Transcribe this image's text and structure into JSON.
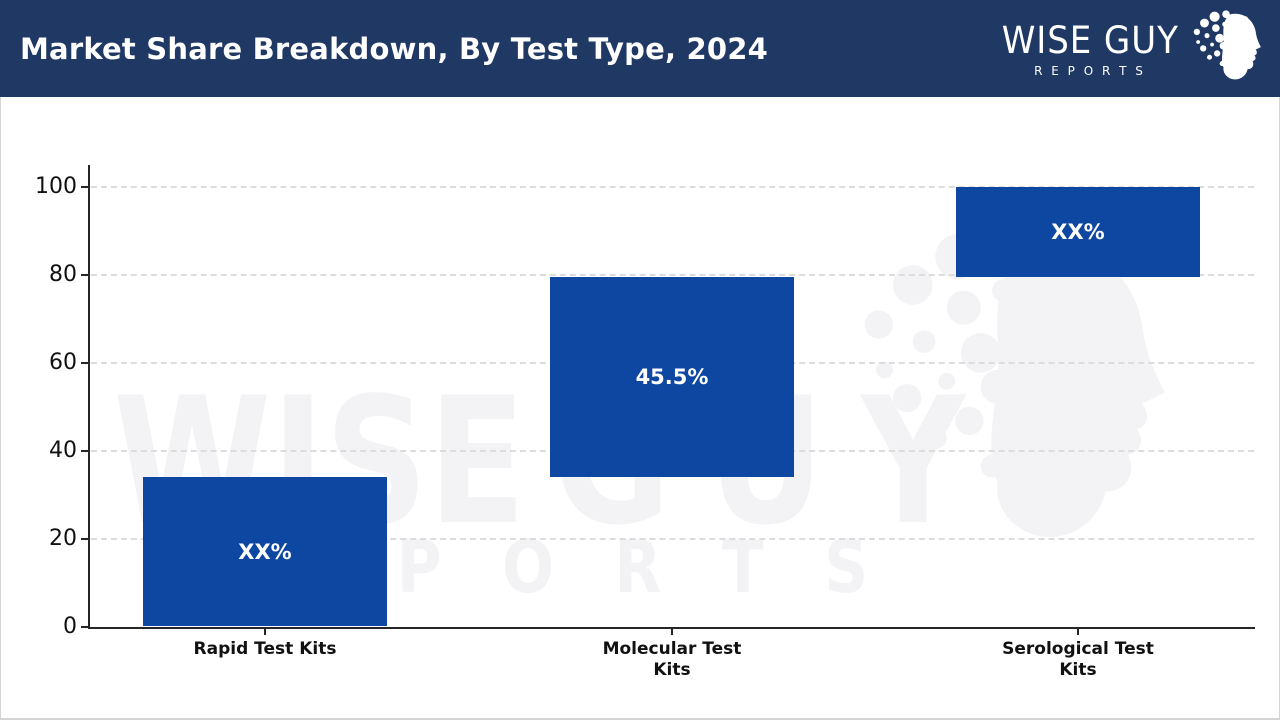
{
  "header": {
    "title": "Market Share Breakdown, By Test Type, 2024"
  },
  "logo": {
    "brand": "WISE GUY",
    "sub": "R E P O R T S"
  },
  "watermark": {
    "word1": "WISE",
    "word2": "GUY",
    "sub": "R E P O R T S"
  },
  "chart_data": {
    "type": "bar",
    "variant": "floating-stacked-percent",
    "title": "Market Share Breakdown, By Test Type, 2024",
    "categories": [
      "Rapid Test Kits",
      "Molecular Test\nKits",
      "Serological Test\nKits"
    ],
    "bars": [
      {
        "category": "Rapid Test Kits",
        "start": 0,
        "end": 34,
        "value_label": "XX%"
      },
      {
        "category": "Molecular Test Kits",
        "start": 34,
        "end": 79.5,
        "value_label": "45.5%"
      },
      {
        "category": "Serological Test Kits",
        "start": 79.5,
        "end": 100,
        "value_label": "XX%"
      }
    ],
    "yticks": [
      0,
      20,
      40,
      60,
      80,
      100
    ],
    "ylim": [
      0,
      105
    ],
    "xlabel": "",
    "ylabel": "",
    "grid": "horizontal-dashed",
    "legend": "none",
    "colors": {
      "bar": "#0d47a1",
      "value_label": "#ffffff",
      "axis": "#262626",
      "tick_label": "#111111",
      "gridline": "#dcdcdc",
      "header_bg": "#1f3864",
      "watermark": "#f3f3f6"
    }
  }
}
